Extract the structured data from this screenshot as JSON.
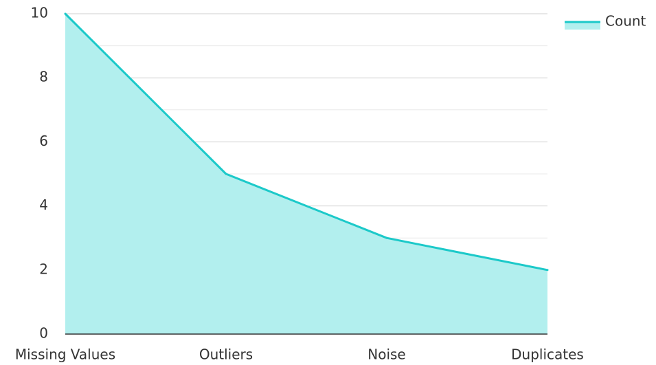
{
  "chart_data": {
    "type": "area",
    "categories": [
      "Missing Values",
      "Outliers",
      "Noise",
      "Duplicates"
    ],
    "series": [
      {
        "name": "Count",
        "values": [
          10,
          5,
          3,
          2
        ]
      }
    ],
    "ylim": [
      0,
      10
    ],
    "yticks": [
      0,
      2,
      4,
      6,
      8,
      10
    ],
    "ytick_labels": [
      "0",
      "2",
      "4",
      "6",
      "8",
      "10"
    ],
    "grid": true,
    "legend_position": "top-right",
    "colors": {
      "line": "#1cc9c9",
      "fill": "#b2efee",
      "grid_major": "#cfcfcf",
      "grid_minor": "#e8e8e8",
      "axis": "#333333"
    }
  }
}
